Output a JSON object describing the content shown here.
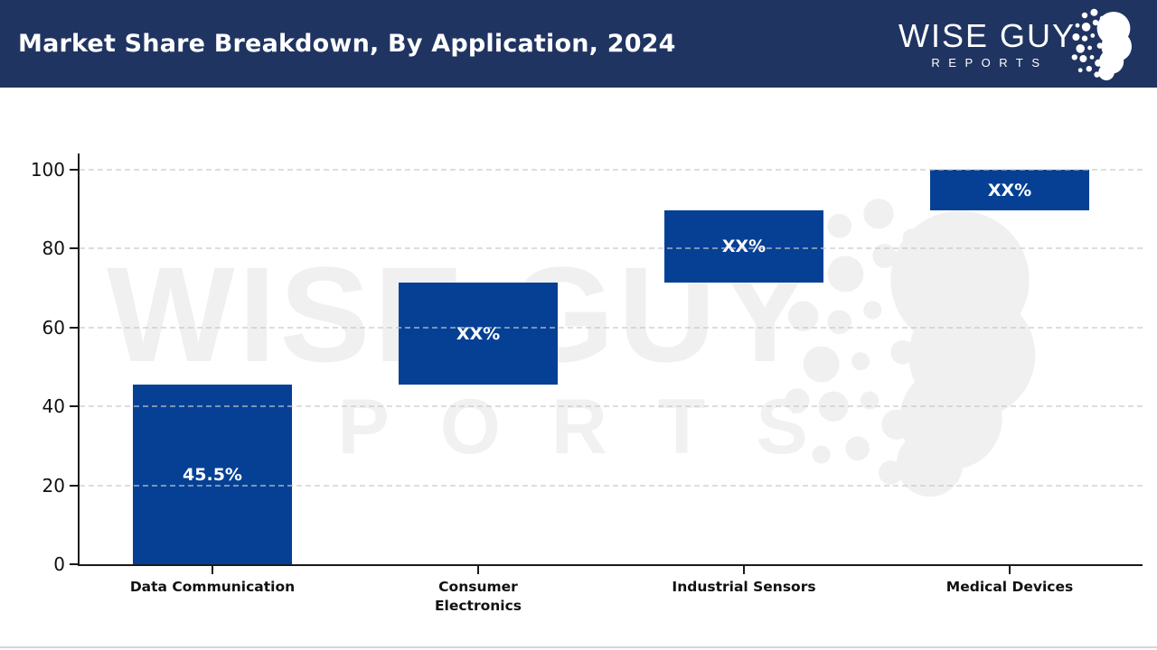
{
  "header": {
    "title": "Market Share Breakdown, By Application, 2024",
    "logo": {
      "brand": "WISE GUY",
      "brand_sub": "REPORTS"
    }
  },
  "watermark": {
    "brand": "WISE GUY",
    "brand_sub": "REPORTS"
  },
  "chart_data": {
    "type": "bar",
    "subtype": "waterfall",
    "title": "Market Share Breakdown, By Application, 2024",
    "categories": [
      "Data Communication",
      "Consumer Electronics",
      "Industrial Sensors",
      "Medical Devices"
    ],
    "categories_display": [
      "Data Communication",
      "Consumer\nElectronics",
      "Industrial Sensors",
      "Medical Devices"
    ],
    "segments": [
      {
        "category": "Data Communication",
        "label": "45.5%",
        "start": 0,
        "end": 45.5
      },
      {
        "category": "Consumer Electronics",
        "label": "XX%",
        "start": 45.5,
        "end": 71.3
      },
      {
        "category": "Industrial Sensors",
        "label": "XX%",
        "start": 71.3,
        "end": 89.6
      },
      {
        "category": "Medical Devices",
        "label": "XX%",
        "start": 89.6,
        "end": 100
      }
    ],
    "yticks": [
      0,
      20,
      40,
      60,
      80,
      100
    ],
    "ylim": [
      0,
      104
    ],
    "xlabel": "",
    "ylabel": "",
    "grid": "horizontal-dashed",
    "legend": "none",
    "bar_color": "#054095",
    "axis_color": "#1a1a1a",
    "header_color": "#1f3461"
  }
}
